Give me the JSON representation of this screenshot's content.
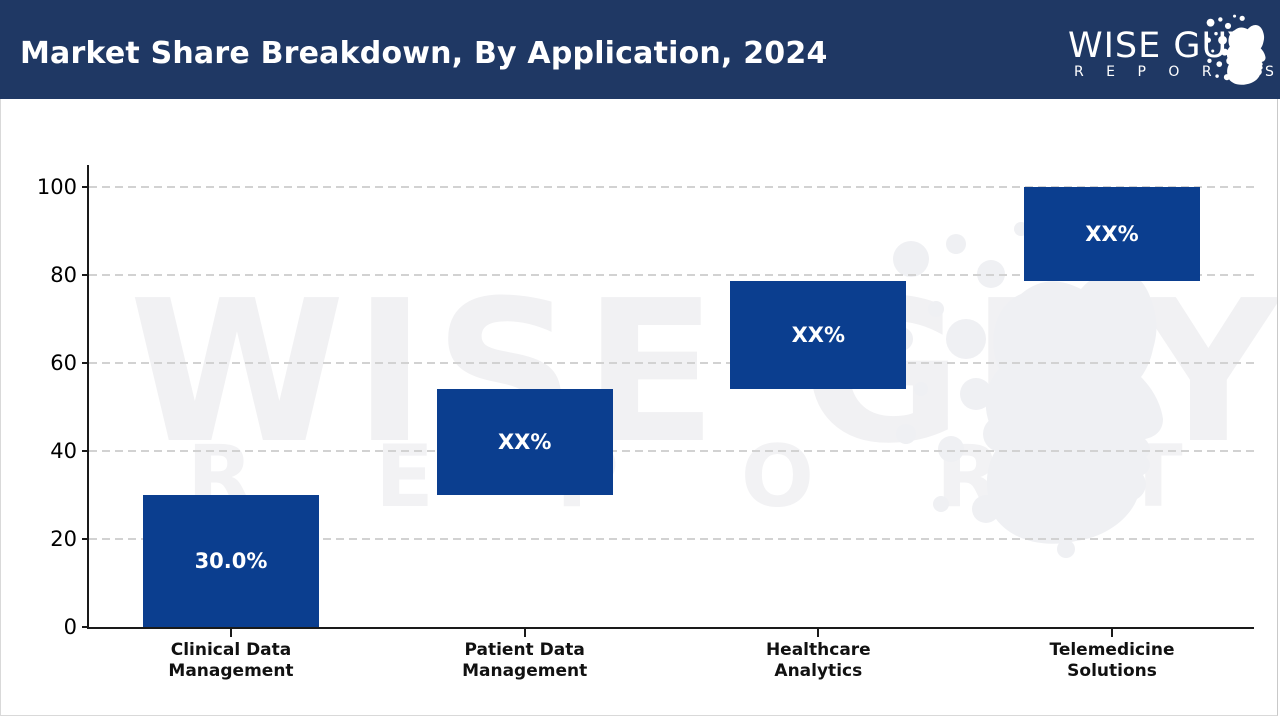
{
  "header": {
    "title": "Market Share Breakdown, By Application, 2024",
    "bg_color": "#1f3864",
    "logo": {
      "line1": "WISE GUY",
      "line2": "R E P O R T S"
    }
  },
  "watermark": {
    "line1": "WISE GUY",
    "line2": "R E P O R T S"
  },
  "chart_data": {
    "type": "bar",
    "subtype": "waterfall",
    "title": "Market Share Breakdown, By Application, 2024",
    "xlabel": "",
    "ylabel": "",
    "ylim": [
      0,
      105
    ],
    "yticks": [
      0,
      20,
      40,
      60,
      80,
      100
    ],
    "grid": "horizontal dashed",
    "legend": "none",
    "bar_color": "#0b3e8f",
    "value_label_color": "#ffffff",
    "categories": [
      "Clinical Data Management",
      "Patient Data Management",
      "Healthcare Analytics",
      "Telemedicine Solutions"
    ],
    "segments": [
      {
        "label": "Clinical Data Management",
        "lines": [
          "Clinical Data",
          "Management"
        ],
        "start": 0,
        "end": 30,
        "value": 30.0,
        "value_label": "30.0%"
      },
      {
        "label": "Patient Data Management",
        "lines": [
          "Patient Data",
          "Management"
        ],
        "start": 30,
        "end": 54.1,
        "value": 24.1,
        "value_label": "XX%"
      },
      {
        "label": "Healthcare Analytics",
        "lines": [
          "Healthcare",
          "Analytics"
        ],
        "start": 54.1,
        "end": 78.6,
        "value": 24.5,
        "value_label": "XX%"
      },
      {
        "label": "Telemedicine Solutions",
        "lines": [
          "Telemedicine",
          "Solutions"
        ],
        "start": 78.6,
        "end": 100,
        "value": 21.4,
        "value_label": "XX%"
      }
    ]
  }
}
